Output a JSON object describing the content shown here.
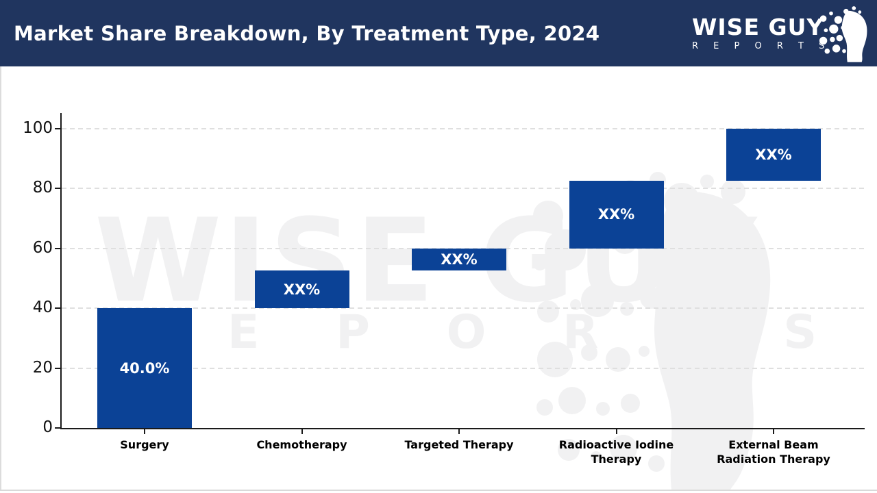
{
  "header": {
    "title": "Market Share Breakdown, By Treatment Type, 2024",
    "logo": {
      "line1": "WISE GUY",
      "line2": "R E P O R T S"
    }
  },
  "watermark": {
    "line1": "WISE GUY",
    "line2": "R E P O R T S"
  },
  "chart_data": {
    "type": "bar",
    "subtype": "waterfall",
    "title": "Market Share Breakdown, By Treatment Type, 2024",
    "xlabel": "",
    "ylabel": "",
    "categories": [
      "Surgery",
      "Chemotherapy",
      "Targeted Therapy",
      "Radioactive Iodine Therapy",
      "External Beam Radiation Therapy"
    ],
    "categories_lines": [
      [
        "Surgery"
      ],
      [
        "Chemotherapy"
      ],
      [
        "Targeted Therapy"
      ],
      [
        "Radioactive Iodine",
        "Therapy"
      ],
      [
        "External Beam",
        "Radiation Therapy"
      ]
    ],
    "segments": [
      {
        "category": "Surgery",
        "start": 0,
        "end": 40,
        "value": 40,
        "label": "40.0%"
      },
      {
        "category": "Chemotherapy",
        "start": 40,
        "end": 52.5,
        "value": 12.5,
        "label": "XX%"
      },
      {
        "category": "Targeted Therapy",
        "start": 52.5,
        "end": 60,
        "value": 7.5,
        "label": "XX%"
      },
      {
        "category": "Radioactive Iodine Therapy",
        "start": 60,
        "end": 82.5,
        "value": 22.5,
        "label": "XX%"
      },
      {
        "category": "External Beam Radiation Therapy",
        "start": 82.5,
        "end": 100,
        "value": 17.5,
        "label": "XX%"
      }
    ],
    "yticks": [
      0,
      20,
      40,
      60,
      80,
      100
    ],
    "ylim": [
      0,
      105
    ],
    "grid": "dashed-horizontal",
    "legend": "none",
    "bar_color": "#0b4296",
    "label_color": "#ffffff"
  },
  "colors": {
    "header_bg": "#20355f",
    "bar": "#0b4296",
    "grid": "#dfdfdf",
    "watermark": "#f1f1f2",
    "axis": "#1a1a1a"
  }
}
